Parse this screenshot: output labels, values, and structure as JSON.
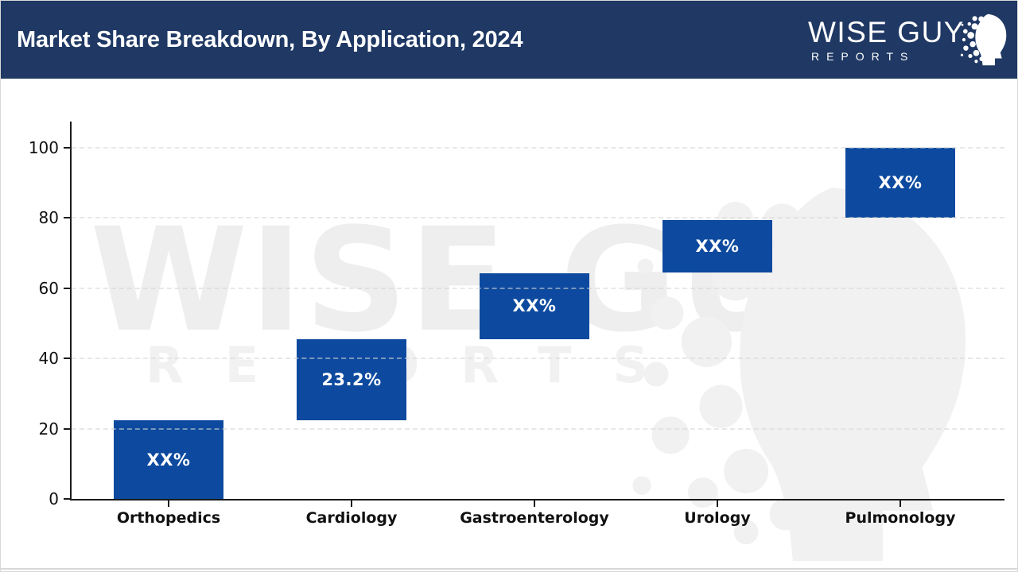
{
  "header": {
    "title": "Market Share Breakdown, By Application, 2024",
    "logo": {
      "wordmark": "WISE GUY",
      "subtext": "REPORTS"
    }
  },
  "watermark": {
    "wordmark": "WISE GUY",
    "subtext": "REPORTS"
  },
  "chart_data": {
    "type": "bar",
    "subtype": "floating-waterfall",
    "title": "Market Share Breakdown, By Application, 2024",
    "categories": [
      "Orthopedics",
      "Cardiology",
      "Gastroenterology",
      "Urology",
      "Pulmonology"
    ],
    "segments": [
      {
        "category": "Orthopedics",
        "start": 0,
        "end": 22.3,
        "label": "XX%"
      },
      {
        "category": "Cardiology",
        "start": 22.3,
        "end": 45.5,
        "label": "23.2%"
      },
      {
        "category": "Gastroenterology",
        "start": 45.5,
        "end": 64.3,
        "label": "XX%"
      },
      {
        "category": "Urology",
        "start": 64.5,
        "end": 79.5,
        "label": "XX%"
      },
      {
        "category": "Pulmonology",
        "start": 80,
        "end": 100,
        "label": "XX%"
      }
    ],
    "yticks": [
      0,
      20,
      40,
      60,
      80,
      100
    ],
    "ylim": [
      0,
      107
    ],
    "xlabel": "",
    "ylabel": "",
    "grid": "horizontal-dashed",
    "legend": "none",
    "bar_color": "#0d4a9f",
    "bar_label_color": "#ffffff"
  },
  "colors": {
    "header_bg": "#1f3864",
    "header_text": "#ffffff",
    "bar": "#0d4a9f",
    "grid": "#dcdcdc",
    "axis": "#1a1a1a",
    "tick_text": "#111111",
    "watermark": "#efefef",
    "page_border": "#d9d9d9"
  }
}
